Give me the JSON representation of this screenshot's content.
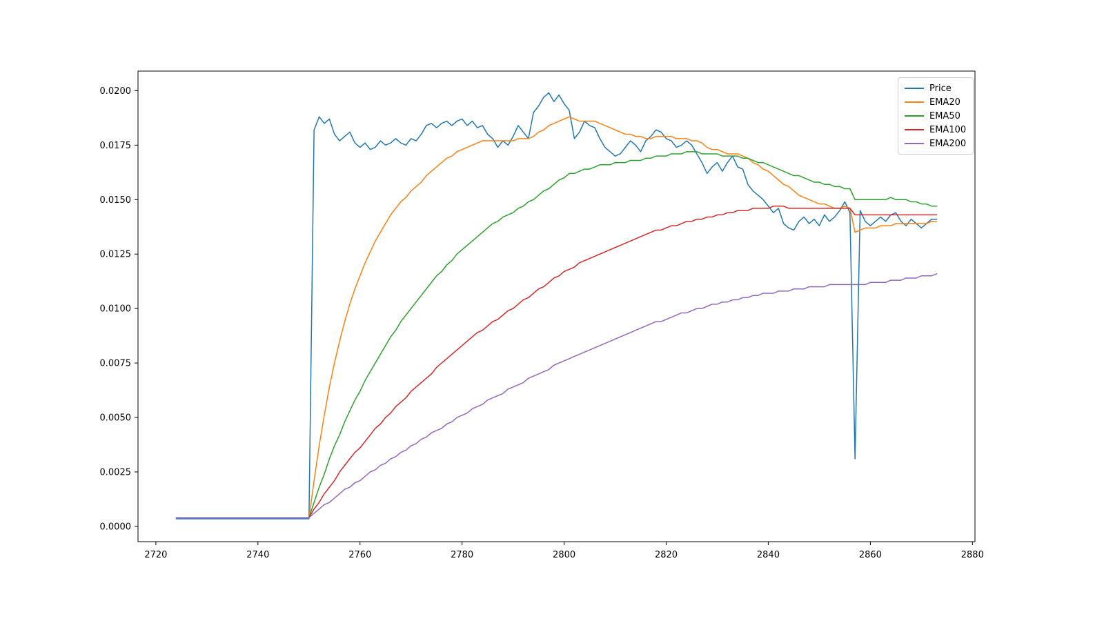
{
  "chart_data": {
    "type": "line",
    "title": "",
    "xlabel": "",
    "ylabel": "",
    "grid": false,
    "legend_position": "upper right",
    "xlim": [
      2716.5,
      2880.5
    ],
    "ylim": [
      -0.0007,
      0.0209
    ],
    "x_range": {
      "start": 2724,
      "end": 2873,
      "step": 1
    },
    "x_ticks": [
      {
        "value": 2720,
        "label": "2720"
      },
      {
        "value": 2740,
        "label": "2740"
      },
      {
        "value": 2760,
        "label": "2760"
      },
      {
        "value": 2780,
        "label": "2780"
      },
      {
        "value": 2800,
        "label": "2800"
      },
      {
        "value": 2820,
        "label": "2820"
      },
      {
        "value": 2840,
        "label": "2840"
      },
      {
        "value": 2860,
        "label": "2860"
      },
      {
        "value": 2880,
        "label": "2880"
      }
    ],
    "y_ticks": [
      {
        "value": 0.0,
        "label": "0.0000"
      },
      {
        "value": 0.0025,
        "label": "0.0025"
      },
      {
        "value": 0.005,
        "label": "0.0050"
      },
      {
        "value": 0.0075,
        "label": "0.0075"
      },
      {
        "value": 0.01,
        "label": "0.0100"
      },
      {
        "value": 0.0125,
        "label": "0.0125"
      },
      {
        "value": 0.015,
        "label": "0.0150"
      },
      {
        "value": 0.0175,
        "label": "0.0175"
      },
      {
        "value": 0.02,
        "label": "0.0200"
      }
    ],
    "series": [
      {
        "name": "Price",
        "color": "#1f77b4",
        "values": [
          0.00035,
          0.00035,
          0.00035,
          0.00035,
          0.00035,
          0.00035,
          0.00035,
          0.00035,
          0.00035,
          0.00035,
          0.00035,
          0.00035,
          0.00035,
          0.00035,
          0.00035,
          0.00035,
          0.00035,
          0.00035,
          0.00035,
          0.00035,
          0.00035,
          0.00035,
          0.00035,
          0.00035,
          0.00035,
          0.00035,
          0.00035,
          0.0182,
          0.0188,
          0.0185,
          0.0187,
          0.018,
          0.0177,
          0.0179,
          0.0181,
          0.0176,
          0.0174,
          0.0176,
          0.0173,
          0.0174,
          0.0177,
          0.0175,
          0.0176,
          0.0178,
          0.0176,
          0.0175,
          0.0178,
          0.0177,
          0.018,
          0.0184,
          0.0185,
          0.0183,
          0.0185,
          0.0186,
          0.0184,
          0.0186,
          0.0187,
          0.0184,
          0.0186,
          0.0183,
          0.0184,
          0.018,
          0.0178,
          0.0174,
          0.0177,
          0.0175,
          0.0179,
          0.0184,
          0.0181,
          0.0178,
          0.019,
          0.0193,
          0.0197,
          0.0199,
          0.0195,
          0.0198,
          0.0194,
          0.0191,
          0.0178,
          0.0181,
          0.0186,
          0.0184,
          0.0183,
          0.0178,
          0.0174,
          0.0172,
          0.017,
          0.0171,
          0.0174,
          0.0177,
          0.0175,
          0.0172,
          0.0177,
          0.0179,
          0.0182,
          0.0181,
          0.0178,
          0.0177,
          0.0174,
          0.0175,
          0.0177,
          0.0175,
          0.0171,
          0.0167,
          0.0162,
          0.0165,
          0.0167,
          0.0163,
          0.0167,
          0.017,
          0.0165,
          0.0164,
          0.0157,
          0.0154,
          0.0152,
          0.015,
          0.0147,
          0.0144,
          0.0146,
          0.0139,
          0.0137,
          0.0136,
          0.014,
          0.0142,
          0.0139,
          0.0141,
          0.0138,
          0.0143,
          0.014,
          0.0142,
          0.0145,
          0.0149,
          0.0144,
          0.0031,
          0.0145,
          0.014,
          0.0138,
          0.014,
          0.0142,
          0.014,
          0.0143,
          0.0144,
          0.014,
          0.0138,
          0.0141,
          0.0139,
          0.0137,
          0.0139,
          0.0141,
          0.0141
        ]
      },
      {
        "name": "EMA20",
        "color": "#ff7f0e",
        "values": [
          0.0004,
          0.0004,
          0.0004,
          0.0004,
          0.0004,
          0.0004,
          0.0004,
          0.0004,
          0.0004,
          0.0004,
          0.0004,
          0.0004,
          0.0004,
          0.0004,
          0.0004,
          0.0004,
          0.0004,
          0.0004,
          0.0004,
          0.0004,
          0.0004,
          0.0004,
          0.0004,
          0.0004,
          0.0004,
          0.0004,
          0.0004,
          0.0021,
          0.0037,
          0.0051,
          0.0064,
          0.0075,
          0.0085,
          0.0094,
          0.0102,
          0.0109,
          0.0115,
          0.0121,
          0.0126,
          0.0131,
          0.0135,
          0.0139,
          0.0143,
          0.0146,
          0.0149,
          0.0151,
          0.0154,
          0.0156,
          0.0158,
          0.0161,
          0.0163,
          0.0165,
          0.0167,
          0.0169,
          0.017,
          0.0172,
          0.0173,
          0.0174,
          0.0175,
          0.0176,
          0.0177,
          0.0177,
          0.0177,
          0.0177,
          0.0177,
          0.0177,
          0.0177,
          0.0178,
          0.0178,
          0.0178,
          0.0179,
          0.0181,
          0.0182,
          0.0184,
          0.0185,
          0.0186,
          0.0187,
          0.0188,
          0.0187,
          0.0186,
          0.0186,
          0.0186,
          0.0186,
          0.0185,
          0.0184,
          0.0183,
          0.0182,
          0.0181,
          0.018,
          0.018,
          0.0179,
          0.0179,
          0.0178,
          0.0178,
          0.0179,
          0.0179,
          0.0179,
          0.0179,
          0.0178,
          0.0178,
          0.0178,
          0.0177,
          0.0177,
          0.0176,
          0.0174,
          0.0173,
          0.0173,
          0.0172,
          0.0171,
          0.0171,
          0.0171,
          0.017,
          0.0169,
          0.0167,
          0.0166,
          0.0164,
          0.0163,
          0.0161,
          0.0159,
          0.0157,
          0.0156,
          0.0154,
          0.0152,
          0.0151,
          0.015,
          0.0149,
          0.0148,
          0.0148,
          0.0147,
          0.0146,
          0.0146,
          0.0147,
          0.0146,
          0.0135,
          0.0136,
          0.0137,
          0.0137,
          0.0137,
          0.0138,
          0.0138,
          0.0138,
          0.0139,
          0.0139,
          0.0139,
          0.0139,
          0.0139,
          0.0139,
          0.0139,
          0.014,
          0.014
        ]
      },
      {
        "name": "EMA50",
        "color": "#2ca02c",
        "values": [
          0.0004,
          0.0004,
          0.0004,
          0.0004,
          0.0004,
          0.0004,
          0.0004,
          0.0004,
          0.0004,
          0.0004,
          0.0004,
          0.0004,
          0.0004,
          0.0004,
          0.0004,
          0.0004,
          0.0004,
          0.0004,
          0.0004,
          0.0004,
          0.0004,
          0.0004,
          0.0004,
          0.0004,
          0.0004,
          0.0004,
          0.0004,
          0.0011,
          0.0018,
          0.0024,
          0.0031,
          0.0037,
          0.0042,
          0.0048,
          0.0053,
          0.0058,
          0.0062,
          0.0067,
          0.0071,
          0.0075,
          0.0079,
          0.0083,
          0.0087,
          0.009,
          0.0094,
          0.0097,
          0.01,
          0.0103,
          0.0106,
          0.0109,
          0.0112,
          0.0115,
          0.0117,
          0.012,
          0.0122,
          0.0125,
          0.0127,
          0.0129,
          0.0131,
          0.0133,
          0.0135,
          0.0137,
          0.0139,
          0.014,
          0.0142,
          0.0143,
          0.0144,
          0.0146,
          0.0147,
          0.0149,
          0.015,
          0.0152,
          0.0154,
          0.0155,
          0.0157,
          0.0159,
          0.016,
          0.0162,
          0.0162,
          0.0163,
          0.0164,
          0.0164,
          0.0165,
          0.0166,
          0.0166,
          0.0166,
          0.0167,
          0.0167,
          0.0167,
          0.0168,
          0.0168,
          0.0168,
          0.0169,
          0.0169,
          0.017,
          0.017,
          0.017,
          0.0171,
          0.0171,
          0.0171,
          0.0172,
          0.0172,
          0.0172,
          0.0171,
          0.0171,
          0.0171,
          0.0171,
          0.017,
          0.017,
          0.017,
          0.017,
          0.0169,
          0.0169,
          0.0168,
          0.0167,
          0.0167,
          0.0166,
          0.0165,
          0.0164,
          0.0163,
          0.0162,
          0.0161,
          0.0161,
          0.016,
          0.0159,
          0.0158,
          0.0158,
          0.0157,
          0.0157,
          0.0156,
          0.0156,
          0.0155,
          0.0155,
          0.015,
          0.015,
          0.015,
          0.015,
          0.015,
          0.015,
          0.015,
          0.0151,
          0.015,
          0.015,
          0.015,
          0.0149,
          0.0149,
          0.0148,
          0.0148,
          0.0147,
          0.0147
        ]
      },
      {
        "name": "EMA100",
        "color": "#d62728",
        "values": [
          0.0004,
          0.0004,
          0.0004,
          0.0004,
          0.0004,
          0.0004,
          0.0004,
          0.0004,
          0.0004,
          0.0004,
          0.0004,
          0.0004,
          0.0004,
          0.0004,
          0.0004,
          0.0004,
          0.0004,
          0.0004,
          0.0004,
          0.0004,
          0.0004,
          0.0004,
          0.0004,
          0.0004,
          0.0004,
          0.0004,
          0.0004,
          0.0008,
          0.0011,
          0.0015,
          0.0018,
          0.0021,
          0.0025,
          0.0028,
          0.0031,
          0.0034,
          0.0036,
          0.0039,
          0.0042,
          0.0045,
          0.0047,
          0.005,
          0.0052,
          0.0055,
          0.0057,
          0.0059,
          0.0062,
          0.0064,
          0.0066,
          0.0068,
          0.007,
          0.0073,
          0.0075,
          0.0077,
          0.0079,
          0.0081,
          0.0083,
          0.0085,
          0.0087,
          0.0089,
          0.009,
          0.0092,
          0.0094,
          0.0095,
          0.0097,
          0.0099,
          0.01,
          0.0102,
          0.0104,
          0.0105,
          0.0107,
          0.0109,
          0.011,
          0.0112,
          0.0114,
          0.0115,
          0.0117,
          0.0118,
          0.0119,
          0.0121,
          0.0122,
          0.0123,
          0.0124,
          0.0125,
          0.0126,
          0.0127,
          0.0128,
          0.0129,
          0.013,
          0.0131,
          0.0132,
          0.0133,
          0.0134,
          0.0135,
          0.0136,
          0.0136,
          0.0137,
          0.0138,
          0.0138,
          0.0139,
          0.014,
          0.014,
          0.0141,
          0.0141,
          0.0142,
          0.0142,
          0.0143,
          0.0143,
          0.0144,
          0.0144,
          0.0145,
          0.0145,
          0.0145,
          0.0146,
          0.0146,
          0.0146,
          0.0146,
          0.0147,
          0.0147,
          0.0147,
          0.0146,
          0.0146,
          0.0146,
          0.0146,
          0.0146,
          0.0146,
          0.0146,
          0.0146,
          0.0146,
          0.0146,
          0.0146,
          0.0146,
          0.0146,
          0.0143,
          0.0143,
          0.0143,
          0.0143,
          0.0143,
          0.0143,
          0.0143,
          0.0143,
          0.0143,
          0.0143,
          0.0143,
          0.0143,
          0.0143,
          0.0143,
          0.0143,
          0.0143,
          0.0143
        ]
      },
      {
        "name": "EMA200",
        "color": "#9467bd",
        "values": [
          0.0004,
          0.0004,
          0.0004,
          0.0004,
          0.0004,
          0.0004,
          0.0004,
          0.0004,
          0.0004,
          0.0004,
          0.0004,
          0.0004,
          0.0004,
          0.0004,
          0.0004,
          0.0004,
          0.0004,
          0.0004,
          0.0004,
          0.0004,
          0.0004,
          0.0004,
          0.0004,
          0.0004,
          0.0004,
          0.0004,
          0.0004,
          0.0006,
          0.0008,
          0.001,
          0.0011,
          0.0013,
          0.0015,
          0.0017,
          0.0018,
          0.002,
          0.0021,
          0.0023,
          0.0025,
          0.0026,
          0.0028,
          0.0029,
          0.0031,
          0.0032,
          0.0034,
          0.0035,
          0.0037,
          0.0038,
          0.004,
          0.0041,
          0.0043,
          0.0044,
          0.0045,
          0.0047,
          0.0048,
          0.005,
          0.0051,
          0.0052,
          0.0054,
          0.0055,
          0.0056,
          0.0058,
          0.0059,
          0.006,
          0.0061,
          0.0063,
          0.0064,
          0.0065,
          0.0066,
          0.0068,
          0.0069,
          0.007,
          0.0071,
          0.0072,
          0.0074,
          0.0075,
          0.0076,
          0.0077,
          0.0078,
          0.0079,
          0.008,
          0.0081,
          0.0082,
          0.0083,
          0.0084,
          0.0085,
          0.0086,
          0.0087,
          0.0088,
          0.0089,
          0.009,
          0.0091,
          0.0092,
          0.0093,
          0.0094,
          0.0094,
          0.0095,
          0.0096,
          0.0097,
          0.0098,
          0.0098,
          0.0099,
          0.01,
          0.01,
          0.0101,
          0.0102,
          0.0102,
          0.0103,
          0.0103,
          0.0104,
          0.0104,
          0.0105,
          0.0105,
          0.0106,
          0.0106,
          0.0107,
          0.0107,
          0.0107,
          0.0108,
          0.0108,
          0.0108,
          0.0109,
          0.0109,
          0.0109,
          0.011,
          0.011,
          0.011,
          0.011,
          0.0111,
          0.0111,
          0.0111,
          0.0111,
          0.0111,
          0.0111,
          0.0111,
          0.0111,
          0.0112,
          0.0112,
          0.0112,
          0.0112,
          0.0113,
          0.0113,
          0.0113,
          0.0114,
          0.0114,
          0.0114,
          0.0115,
          0.0115,
          0.0115,
          0.0116
        ]
      }
    ]
  }
}
